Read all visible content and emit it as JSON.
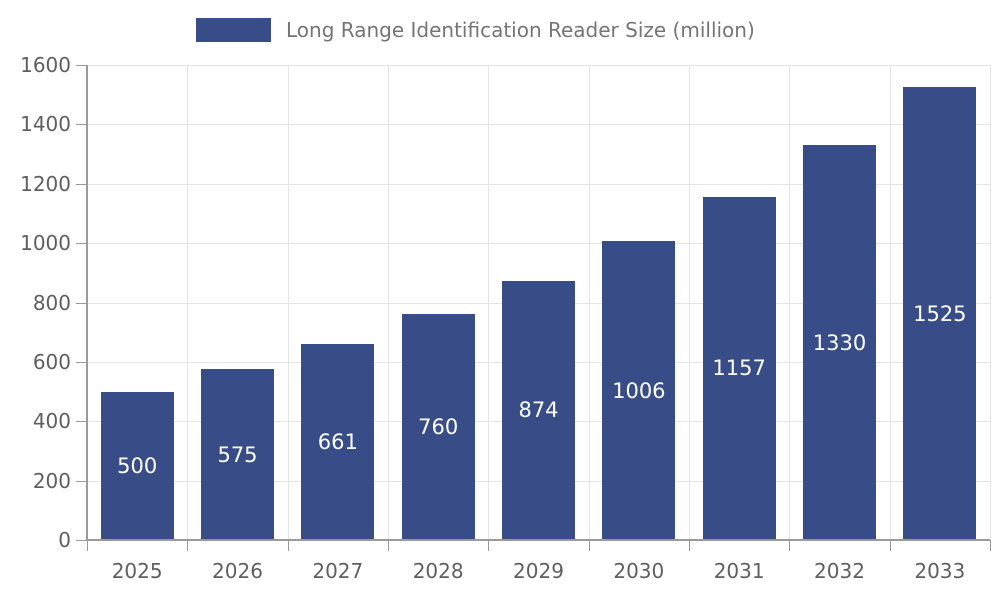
{
  "chart_data": {
    "type": "bar",
    "title": "",
    "categories": [
      "2025",
      "2026",
      "2027",
      "2028",
      "2029",
      "2030",
      "2031",
      "2032",
      "2033"
    ],
    "series": [
      {
        "name": "Long Range Identification Reader Size (million)",
        "values": [
          500,
          575,
          661,
          760,
          874,
          1006,
          1157,
          1330,
          1525
        ]
      }
    ],
    "xlabel": "",
    "ylabel": "",
    "ylim": [
      0,
      1600
    ],
    "ytick_step": 200,
    "yticks": [
      0,
      200,
      400,
      600,
      800,
      1000,
      1200,
      1400,
      1600
    ],
    "grid": true,
    "legend_position": "top",
    "value_labels": "inside-center"
  },
  "colors": {
    "bar": "#384c87",
    "value_label": "#ffffff",
    "grid": "#e4e4e4",
    "axis": "#9a9a9a",
    "tick_label": "#5f5f5f",
    "legend_text": "#757575"
  }
}
